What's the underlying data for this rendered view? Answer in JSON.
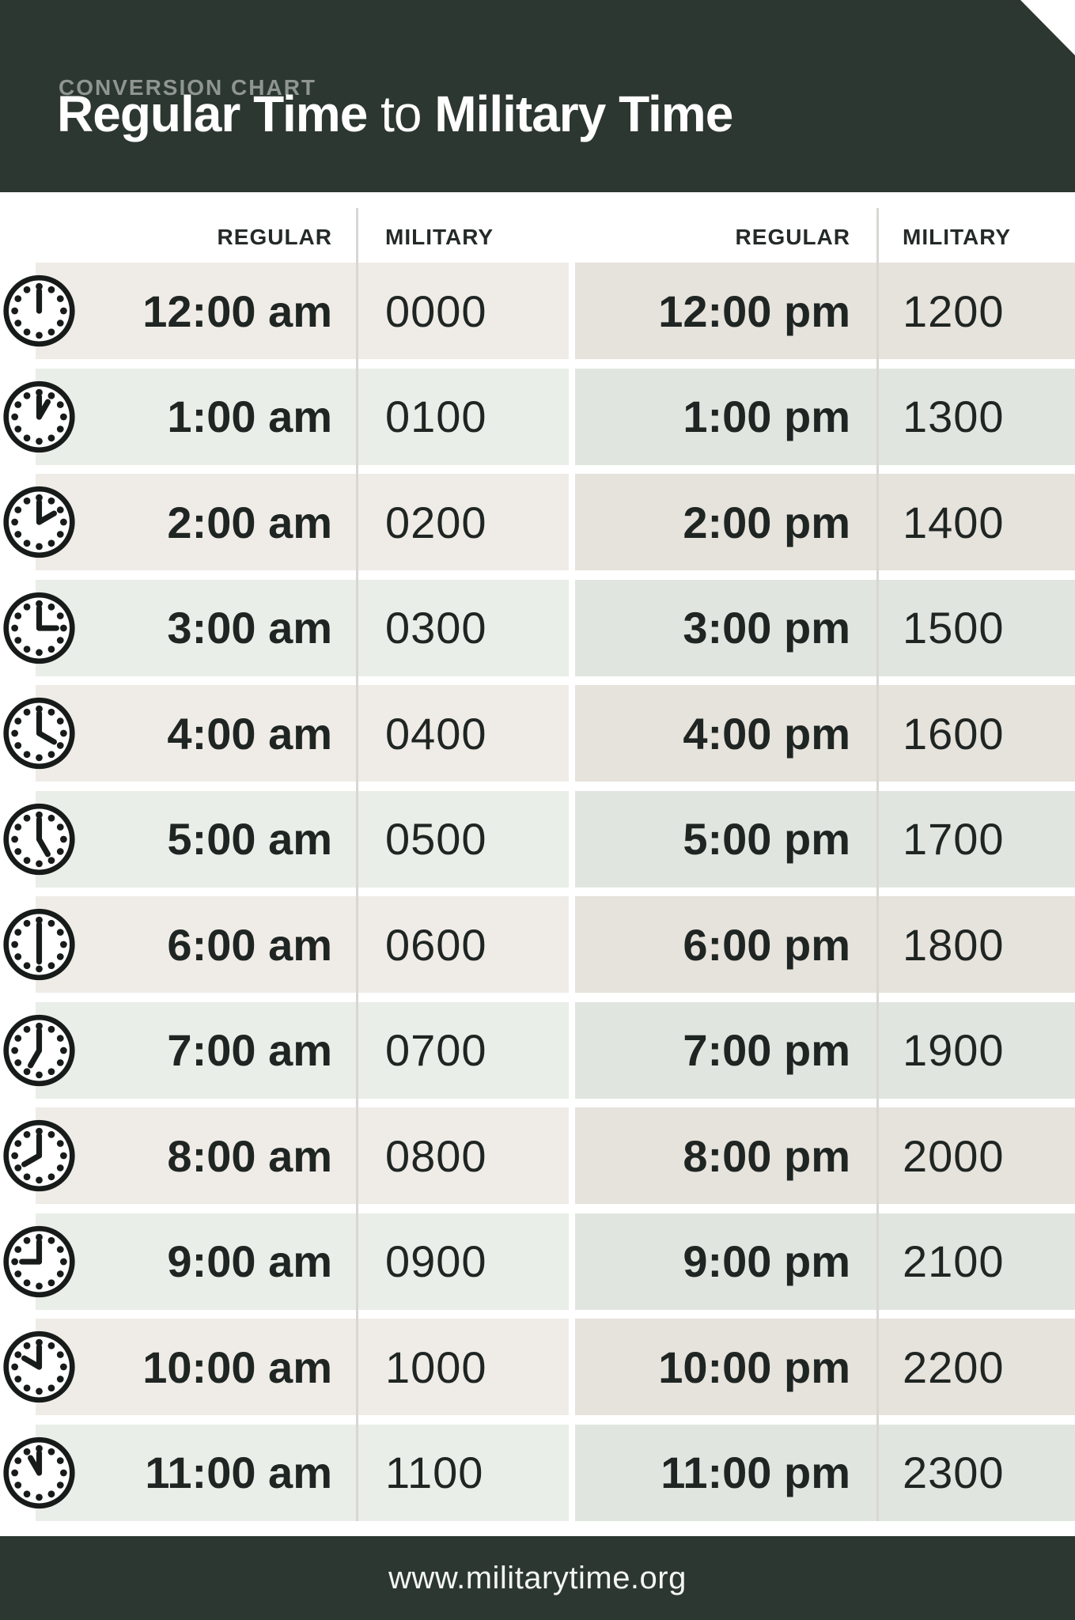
{
  "header": {
    "eyebrow": "CONVERSION CHART",
    "title_regular": "Regular Time",
    "title_to": " to ",
    "title_military": "Military Time"
  },
  "table": {
    "column_headers": [
      "REGULAR",
      "MILITARY",
      "REGULAR",
      "MILITARY"
    ],
    "rows": [
      {
        "hour": 12,
        "icon": "clock-icon",
        "regular_am": "12:00 am",
        "military_am": "0000",
        "regular_pm": "12:00 pm",
        "military_pm": "1200"
      },
      {
        "hour": 1,
        "icon": "clock-icon",
        "regular_am": "1:00 am",
        "military_am": "0100",
        "regular_pm": "1:00 pm",
        "military_pm": "1300"
      },
      {
        "hour": 2,
        "icon": "clock-icon",
        "regular_am": "2:00 am",
        "military_am": "0200",
        "regular_pm": "2:00 pm",
        "military_pm": "1400"
      },
      {
        "hour": 3,
        "icon": "clock-icon",
        "regular_am": "3:00 am",
        "military_am": "0300",
        "regular_pm": "3:00 pm",
        "military_pm": "1500"
      },
      {
        "hour": 4,
        "icon": "clock-icon",
        "regular_am": "4:00 am",
        "military_am": "0400",
        "regular_pm": "4:00 pm",
        "military_pm": "1600"
      },
      {
        "hour": 5,
        "icon": "clock-icon",
        "regular_am": "5:00 am",
        "military_am": "0500",
        "regular_pm": "5:00 pm",
        "military_pm": "1700"
      },
      {
        "hour": 6,
        "icon": "clock-icon",
        "regular_am": "6:00 am",
        "military_am": "0600",
        "regular_pm": "6:00 pm",
        "military_pm": "1800"
      },
      {
        "hour": 7,
        "icon": "clock-icon",
        "regular_am": "7:00 am",
        "military_am": "0700",
        "regular_pm": "7:00 pm",
        "military_pm": "1900"
      },
      {
        "hour": 8,
        "icon": "clock-icon",
        "regular_am": "8:00 am",
        "military_am": "0800",
        "regular_pm": "8:00 pm",
        "military_pm": "2000"
      },
      {
        "hour": 9,
        "icon": "clock-icon",
        "regular_am": "9:00 am",
        "military_am": "0900",
        "regular_pm": "9:00 pm",
        "military_pm": "2100"
      },
      {
        "hour": 10,
        "icon": "clock-icon",
        "regular_am": "10:00 am",
        "military_am": "1000",
        "regular_pm": "10:00 pm",
        "military_pm": "2200"
      },
      {
        "hour": 11,
        "icon": "clock-icon",
        "regular_am": "11:00 am",
        "military_am": "1100",
        "regular_pm": "11:00 pm",
        "military_pm": "2300"
      }
    ]
  },
  "footer": {
    "url": "www.militarytime.org"
  },
  "colors": {
    "header_bg": "#2D3732",
    "eyebrow_text": "#8F968F",
    "title_text": "#FFFFFF",
    "row_text": "#1F2522",
    "divider": "#D8D7D3",
    "row_left_odd": "#EFECE7",
    "row_left_even": "#E9EEE8",
    "row_right_odd": "#E6E2DC",
    "row_right_even": "#E0E6DF",
    "icon_stroke": "#171B19",
    "footer_bg": "#2D3732",
    "footer_text": "#F4F6F3"
  }
}
